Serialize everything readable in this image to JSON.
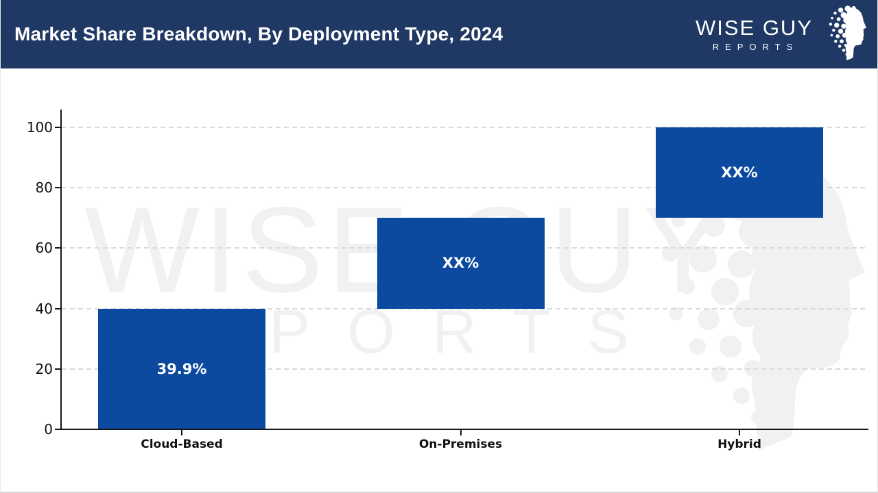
{
  "header": {
    "title": "Market Share Breakdown, By Deployment Type, 2024",
    "logo": {
      "line1": "WISE GUY",
      "line2": "REPORTS"
    }
  },
  "watermark": {
    "line1": "WISE GUY",
    "line2": "REPORTS"
  },
  "chart_data": {
    "type": "bar",
    "subtype": "floating-segment-columns",
    "title": "Market Share Breakdown, By Deployment Type, 2024",
    "categories": [
      "Cloud-Based",
      "On-Premises",
      "Hybrid"
    ],
    "series": [
      {
        "name": "Market share (%)",
        "ranges": [
          [
            0,
            39.9
          ],
          [
            40,
            70
          ],
          [
            70,
            100
          ]
        ],
        "labels": [
          "39.9%",
          "XX%",
          "XX%"
        ]
      }
    ],
    "xlabel": "",
    "ylabel": "",
    "ylim": [
      0,
      105.8
    ],
    "yticks": [
      0,
      20,
      40,
      60,
      80,
      100
    ],
    "grid": "horizontal-dashed",
    "legend": "none",
    "colors": {
      "bar": "#0b4a9f",
      "grid": "#d9d9d9",
      "axis": "#151515",
      "bar_label": "#ffffff",
      "header_bg": "#1f3864",
      "watermark": "#f1f1f4"
    }
  }
}
